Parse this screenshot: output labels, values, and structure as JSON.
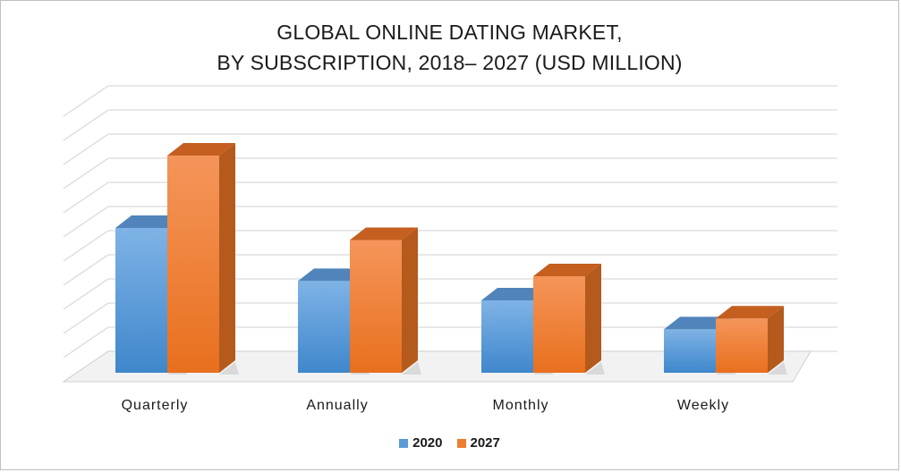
{
  "chart_data": {
    "type": "bar",
    "title": "GLOBAL ONLINE DATING MARKET,",
    "subtitle": "BY SUBSCRIPTION, 2018– 2027 (USD MILLION)",
    "categories": [
      "Quarterly",
      "Annually",
      "Monthly",
      "Weekly"
    ],
    "series": [
      {
        "name": "2020",
        "values": [
          6.0,
          3.8,
          3.0,
          1.8
        ],
        "color": "#5b9bd5"
      },
      {
        "name": "2027",
        "values": [
          9.0,
          5.5,
          4.0,
          2.25
        ],
        "color": "#ed7d31"
      }
    ],
    "ylim": [
      0,
      11
    ],
    "grid": true,
    "legend": "bottom-center",
    "style": "3d-clustered-column"
  }
}
